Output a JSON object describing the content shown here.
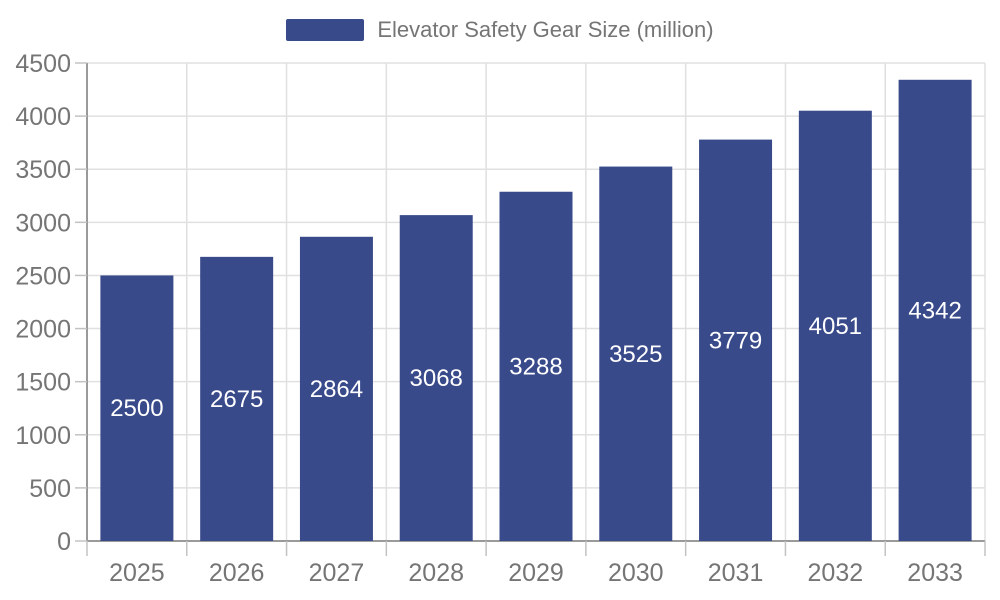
{
  "legend": {
    "label": "Elevator Safety Gear Size (million)",
    "swatch_color": "#394A8B"
  },
  "colors": {
    "bar": "#394A8B",
    "grid": "#E0E0E0",
    "axis": "#9A9A9A",
    "tick": "#C2C2C2",
    "tick_text": "#757575",
    "value_label": "#FFFFFF",
    "background": "#FFFFFF"
  },
  "chart_data": {
    "type": "bar",
    "title": "Elevator Safety Gear Size (million)",
    "categories": [
      "2025",
      "2026",
      "2027",
      "2028",
      "2029",
      "2030",
      "2031",
      "2032",
      "2033"
    ],
    "series": [
      {
        "name": "Elevator Safety Gear Size (million)",
        "values": [
          2500,
          2675,
          2864,
          3068,
          3288,
          3525,
          3779,
          4051,
          4342
        ]
      }
    ],
    "value_labels": [
      "2500",
      "2675",
      "2864",
      "3068",
      "3288",
      "3525",
      "3779",
      "4051",
      "4342"
    ],
    "xlabel": "",
    "ylabel": "",
    "ylim": [
      0,
      4500
    ],
    "ytick_step": 500,
    "yticks": [
      0,
      500,
      1000,
      1500,
      2000,
      2500,
      3000,
      3500,
      4000,
      4500
    ],
    "grid": true,
    "legend_position": "top-center"
  }
}
